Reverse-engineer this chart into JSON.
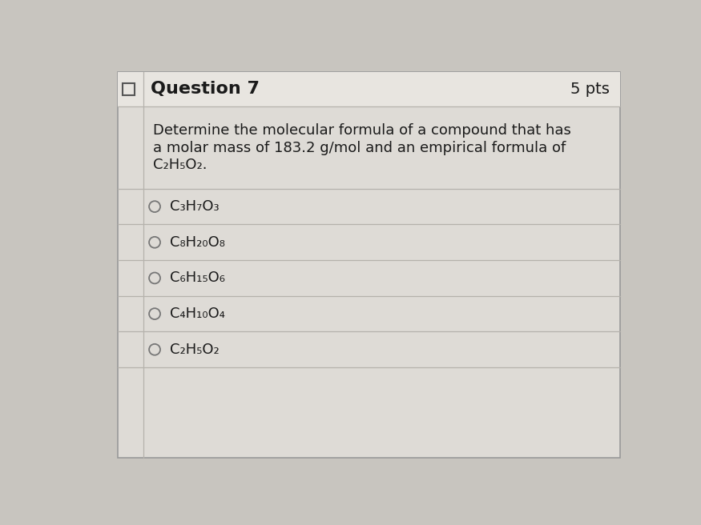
{
  "title": "Question 7",
  "pts": "5 pts",
  "question_text_line1": "Determine the molecular formula of a compound that has",
  "question_text_line2": "a molar mass of 183.2 g/mol and an empirical formula of",
  "question_text_line3": "C₂H₅O₂.",
  "options": [
    "C₃H₇O₃",
    "C₈H₂₀O₈",
    "C₆H₁₅O₆",
    "C₄H₁₀O₄",
    "C₂H₅O₂"
  ],
  "bg_color": "#c8c5bf",
  "panel_color": "#dedbd6",
  "header_color": "#e8e5e0",
  "title_fontsize": 16,
  "pts_fontsize": 14,
  "body_fontsize": 13,
  "option_fontsize": 13,
  "text_color": "#1a1a1a",
  "line_color": "#b5b2ac",
  "border_color": "#999999",
  "checkbox_color": "#555555"
}
